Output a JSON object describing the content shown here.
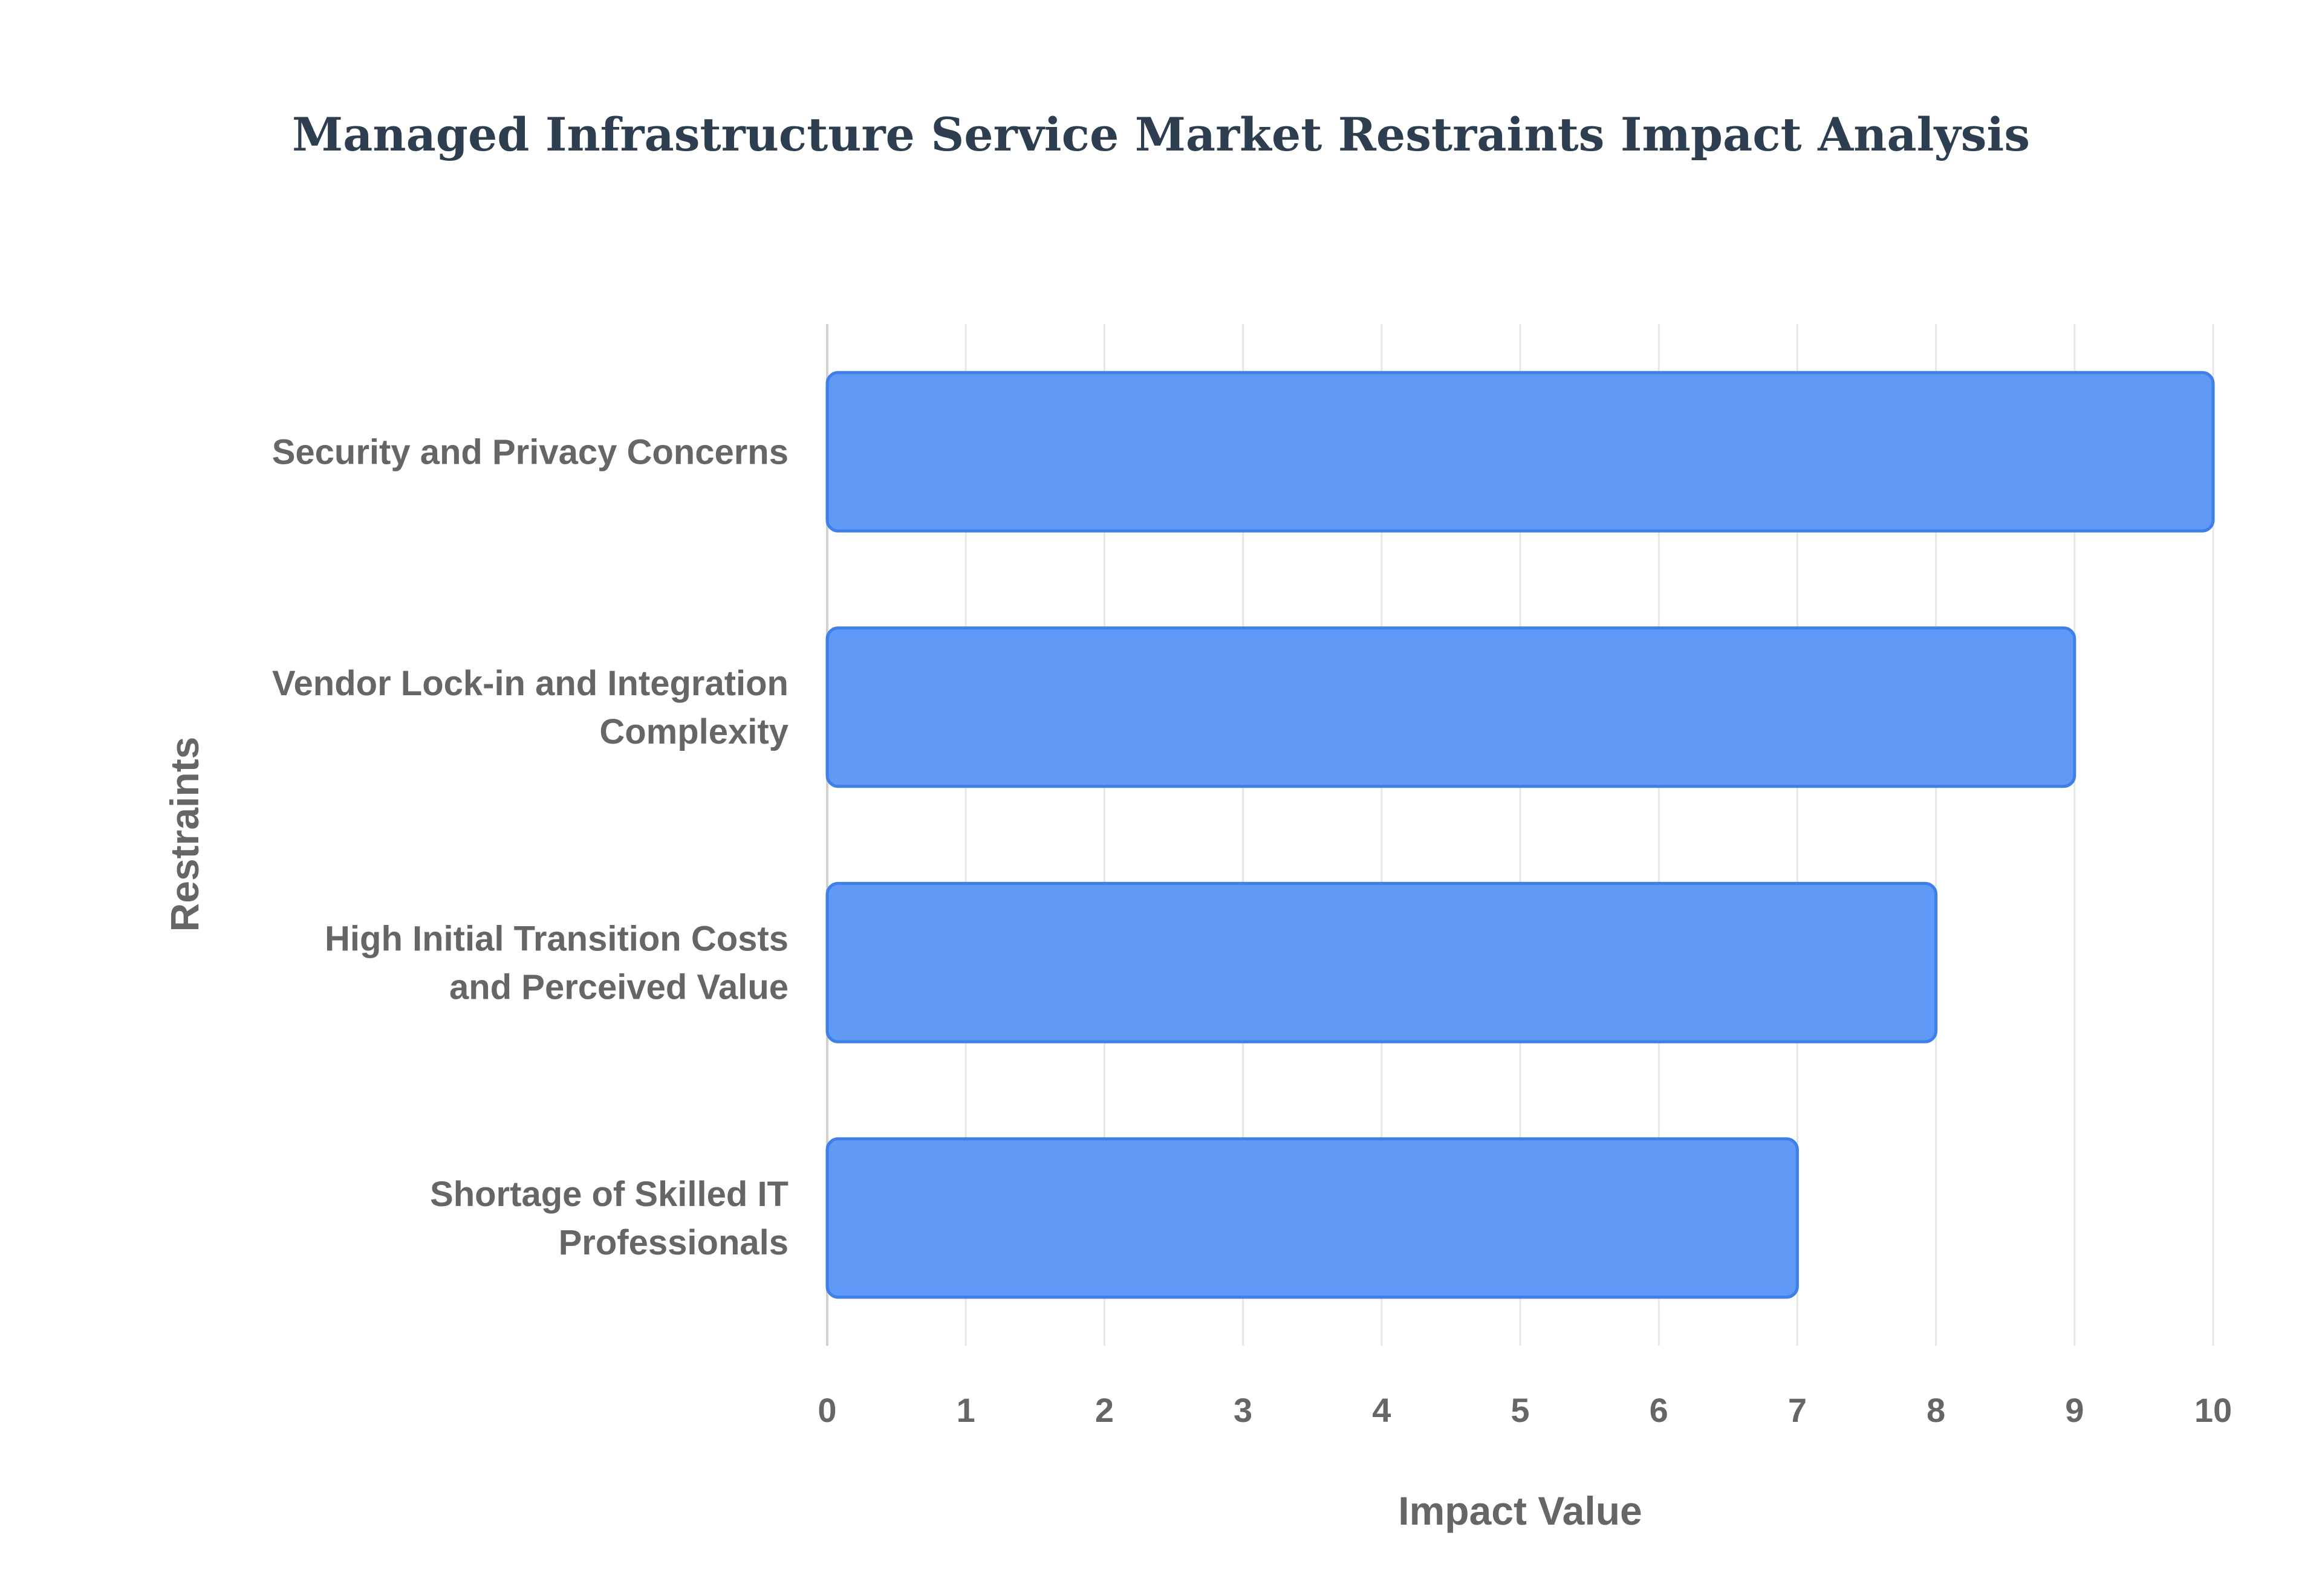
{
  "chart_data": {
    "type": "bar",
    "orientation": "horizontal",
    "title": "Managed Infrastructure Service Market Restraints Impact Analysis",
    "xlabel": "Impact Value",
    "ylabel": "Restraints",
    "categories": [
      [
        "Security and Privacy Concerns"
      ],
      [
        "Vendor Lock-in and Integration",
        "Complexity"
      ],
      [
        "High Initial Transition Costs",
        "and Perceived Value"
      ],
      [
        "Shortage of Skilled IT",
        "Professionals"
      ]
    ],
    "values": [
      10,
      9,
      8,
      7
    ],
    "xlim": [
      0,
      10
    ],
    "xticks": [
      "0",
      "1",
      "2",
      "3",
      "4",
      "5",
      "6",
      "7",
      "8",
      "9",
      "10"
    ],
    "grid": true,
    "legend": "none"
  },
  "colors": {
    "bar_fill": "#6199F6",
    "bar_stroke": "#3F7FE8",
    "grid": "#e6e6e6",
    "axis": "#d0d0d0",
    "text": "#666666",
    "title": "#2c3e50"
  }
}
